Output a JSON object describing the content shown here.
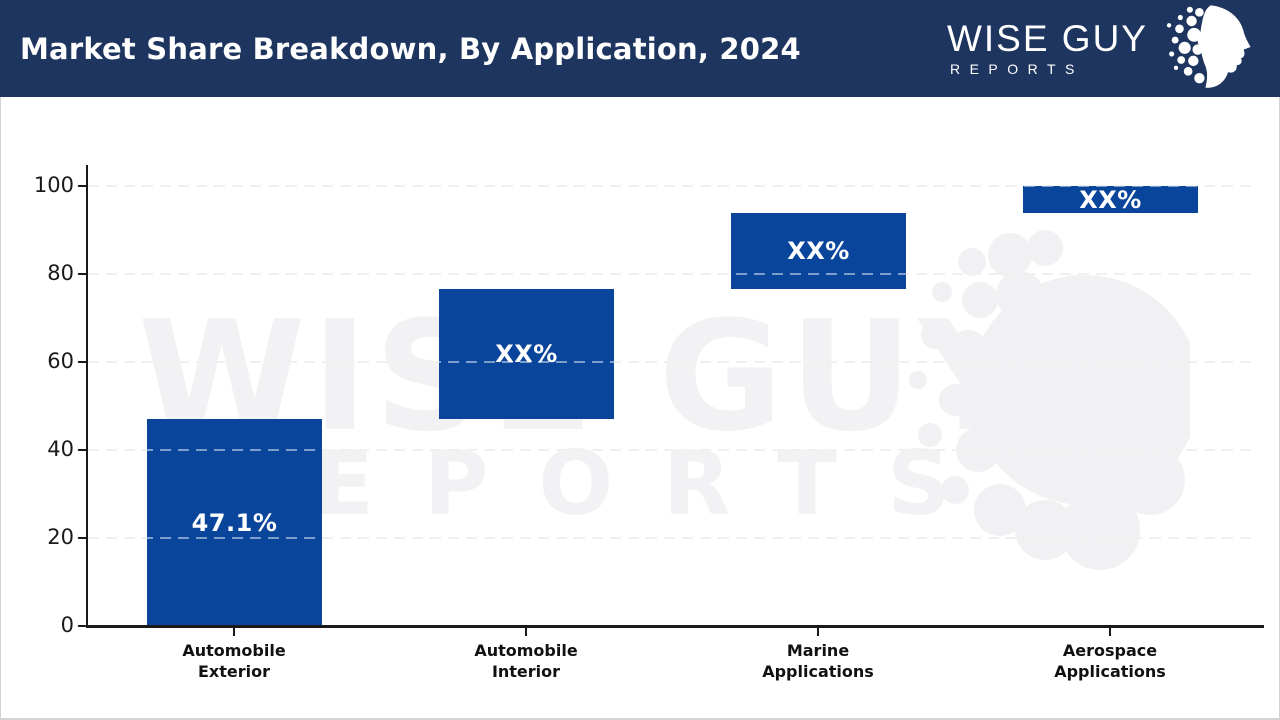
{
  "header": {
    "title": "Market Share Breakdown, By Application, 2024",
    "bg_color": "#1e3560",
    "logo": {
      "line1": "WISE GUY",
      "line2": "REPORTS"
    }
  },
  "watermark": {
    "line1": "WISE GUY",
    "line2": "REPORTS"
  },
  "chart_data": {
    "type": "bar",
    "subtype": "floating-waterfall",
    "title": "Market Share Breakdown, By Application, 2024",
    "categories": [
      "Automobile Exterior",
      "Automobile Interior",
      "Marine Applications",
      "Aerospace Applications"
    ],
    "category_lines": [
      [
        "Automobile",
        "Exterior"
      ],
      [
        "Automobile",
        "Interior"
      ],
      [
        "Marine",
        "Applications"
      ],
      [
        "Aerospace",
        "Applications"
      ]
    ],
    "bars": [
      {
        "start": 0,
        "end": 47.1,
        "label": "47.1%"
      },
      {
        "start": 47.1,
        "end": 76.6,
        "label": "XX%"
      },
      {
        "start": 76.6,
        "end": 93.9,
        "label": "XX%"
      },
      {
        "start": 93.9,
        "end": 100,
        "label": "XX%"
      }
    ],
    "segment_values": [
      47.1,
      29.5,
      17.3,
      6.1
    ],
    "bar_labels": [
      "47.1%",
      "XX%",
      "XX%",
      "XX%"
    ],
    "ylim": [
      0,
      100
    ],
    "yticks": [
      0,
      20,
      40,
      60,
      80,
      100
    ],
    "ytick_labels": [
      "0",
      "20",
      "40",
      "60",
      "80",
      "100"
    ],
    "grid": "horizontal-dashed",
    "legend": "none",
    "bar_color": "#0a459c",
    "axis_color": "#1a1a1a",
    "gridline_color": "#e3e3e3"
  }
}
